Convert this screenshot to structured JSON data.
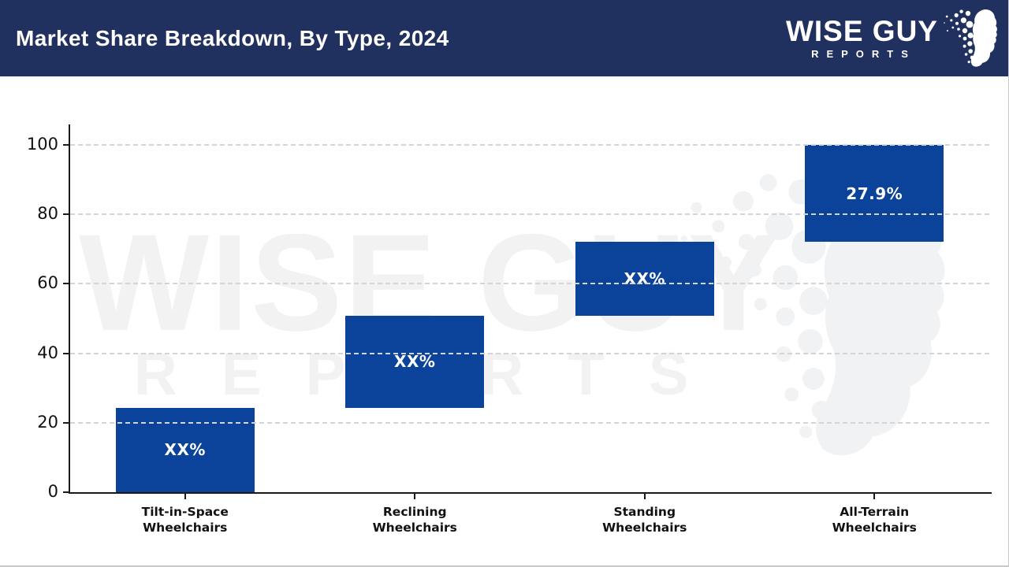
{
  "header": {
    "title": "Market Share Breakdown, By Type, 2024",
    "logo": {
      "name": "WISE GUY",
      "tagline": "REPORTS"
    }
  },
  "watermark": {
    "name": "WISE GUY",
    "tagline": "REPORTS"
  },
  "chart_data": {
    "type": "bar",
    "subtype": "waterfall-stacked-percentage",
    "title": "Market Share Breakdown, By Type, 2024",
    "categories": [
      "Tilt-in-Space Wheelchairs",
      "Reclining Wheelchairs",
      "Standing Wheelchairs",
      "All-Terrain Wheelchairs"
    ],
    "category_lines": [
      [
        "Tilt-in-Space",
        "Wheelchairs"
      ],
      [
        "Reclining",
        "Wheelchairs"
      ],
      [
        "Standing",
        "Wheelchairs"
      ],
      [
        "All-Terrain",
        "Wheelchairs"
      ]
    ],
    "segments": [
      {
        "category": "Tilt-in-Space Wheelchairs",
        "start": 0,
        "end": 24.3,
        "value": 24.3,
        "label": "XX%"
      },
      {
        "category": "Reclining Wheelchairs",
        "start": 24.3,
        "end": 50.9,
        "value": 26.6,
        "label": "XX%"
      },
      {
        "category": "Standing Wheelchairs",
        "start": 50.9,
        "end": 72.1,
        "value": 21.2,
        "label": "XX%"
      },
      {
        "category": "All-Terrain Wheelchairs",
        "start": 72.1,
        "end": 100,
        "value": 27.9,
        "label": "27.9%"
      }
    ],
    "ylim": [
      0,
      100
    ],
    "yticks": [
      0,
      20,
      40,
      60,
      80,
      100
    ],
    "grid": {
      "horizontal": true,
      "style": "dashed",
      "color": "#d4d4d4"
    },
    "legend": "none",
    "bar_color": "#0a4399",
    "bar_label_color": "#ffffff"
  },
  "colors": {
    "header_bg": "#21315f",
    "bar": "#0a4399",
    "axis": "#1a1a1a",
    "watermark": "#f2f2f3",
    "page_border": "#c9c9c9"
  }
}
